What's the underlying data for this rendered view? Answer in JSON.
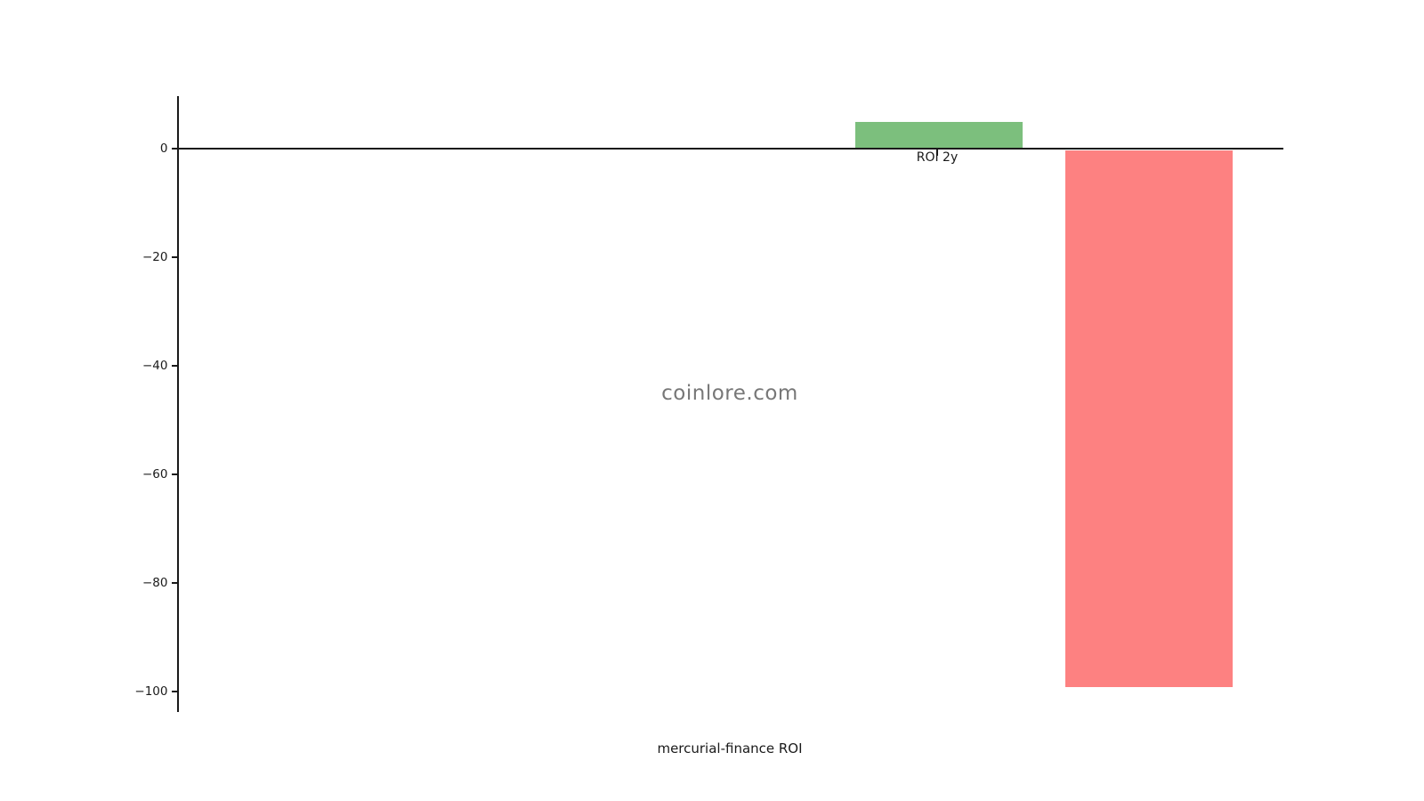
{
  "watermark": {
    "text": "coinlore.com",
    "color": "#777777"
  },
  "x_axis": {
    "tick_label": "ROI 2y",
    "title": "mercurial-finance ROI"
  },
  "y_axis": {
    "tick_labels": [
      "0",
      "−20",
      "−40",
      "−60",
      "−80",
      "−100"
    ]
  },
  "chart_data": {
    "type": "bar",
    "title": "",
    "xlabel": "mercurial-finance ROI",
    "ylabel": "",
    "categories": [
      "ROI 2y",
      ""
    ],
    "values": [
      5,
      -99
    ],
    "bar_colors": [
      "#7cbf7d",
      "#fd8181"
    ],
    "y_ticks": [
      0,
      -20,
      -40,
      -60,
      -80,
      -100
    ],
    "ylim": [
      -104,
      10
    ],
    "grid": false,
    "legend": false,
    "watermark": "coinlore.com",
    "note": "only the first bar has a visible x tick label; second (negative) bar is unlabeled"
  }
}
